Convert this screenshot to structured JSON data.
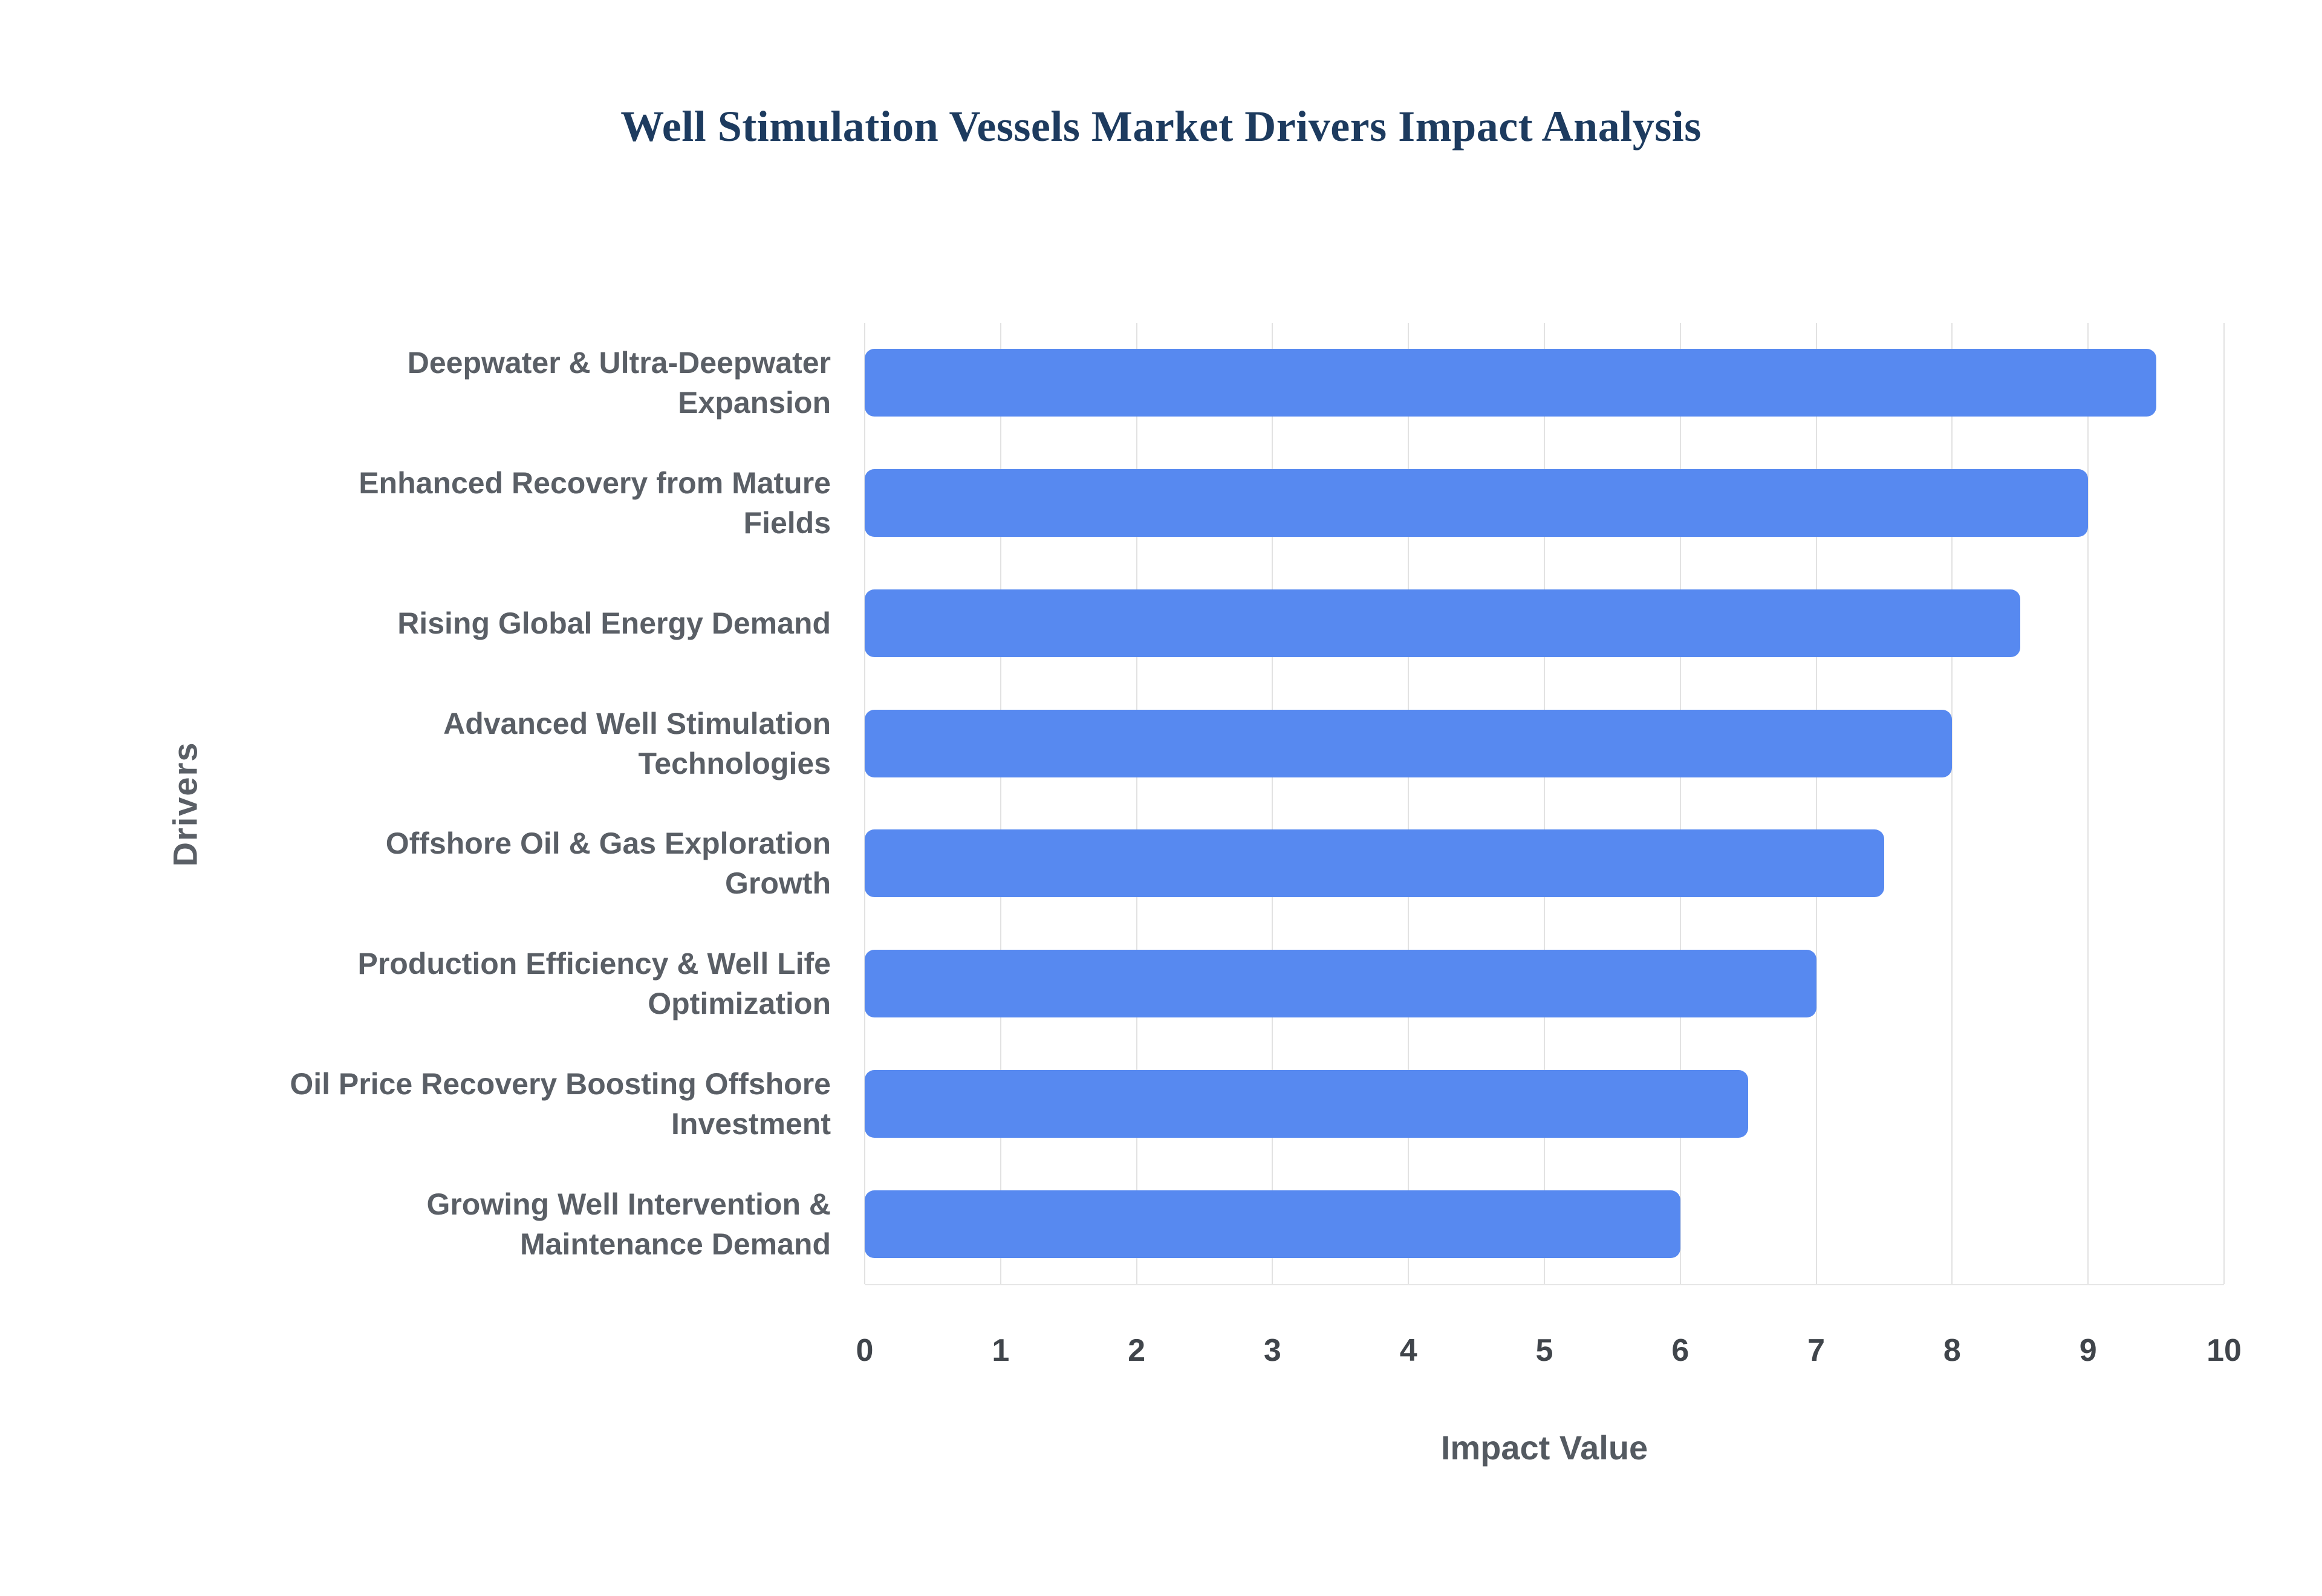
{
  "page": {
    "background_color": "#ffffff"
  },
  "chart_data": {
    "type": "bar",
    "orientation": "horizontal",
    "title": "Well Stimulation Vessels Market Drivers Impact Analysis",
    "xlabel": "Impact Value",
    "ylabel": "Drivers",
    "categories": [
      "Deepwater & Ultra-Deepwater Expansion",
      "Enhanced Recovery from Mature Fields",
      "Rising Global Energy Demand",
      "Advanced Well Stimulation Technologies",
      "Offshore Oil & Gas Exploration Growth",
      "Production Efficiency & Well Life Optimization",
      "Oil Price Recovery Boosting Offshore Investment",
      "Growing Well Intervention & Maintenance Demand"
    ],
    "values": [
      9.5,
      9,
      8.5,
      8,
      7.5,
      7,
      6.5,
      6
    ],
    "xlim": [
      0,
      10
    ],
    "x_ticks": [
      0,
      1,
      2,
      3,
      4,
      5,
      6,
      7,
      8,
      9,
      10
    ],
    "grid": "vertical",
    "legend": "none",
    "bar_color": "#5789f0",
    "title_color": "#1d3b5f",
    "axis_text_color": "#5a5f66"
  }
}
